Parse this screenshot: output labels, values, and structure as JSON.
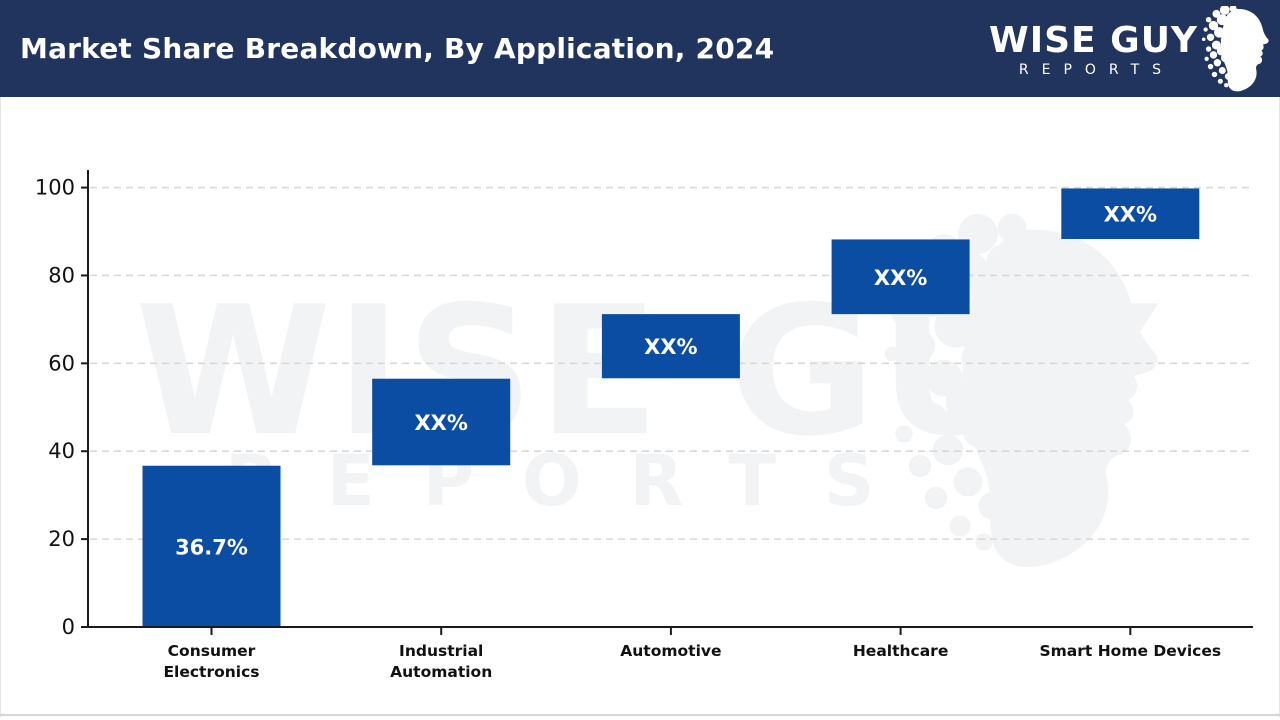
{
  "header": {
    "title": "Market Share Breakdown, By Application, 2024",
    "bg_color": "#20345e",
    "logo": {
      "line1": "WISE GUY",
      "line2": "REPORTS"
    }
  },
  "watermark": {
    "line1": "WISE GUY",
    "line2": "REPORTS"
  },
  "chart_data": {
    "type": "bar",
    "subtype": "waterfall",
    "title": "",
    "xlabel": "",
    "ylabel": "",
    "ylim": [
      0,
      104
    ],
    "yticks": [
      0,
      20,
      40,
      60,
      80,
      100
    ],
    "grid": "horizontal-dashed",
    "legend": "none",
    "bar_color": "#0b4da2",
    "bar_label_color": "#ffffff",
    "axis_color": "#1a1a1a",
    "grid_color": "#d8d8d8",
    "categories": [
      {
        "label": "Consumer Electronics",
        "lines": [
          "Consumer",
          "Electronics"
        ]
      },
      {
        "label": "Industrial Automation",
        "lines": [
          "Industrial",
          "Automation"
        ]
      },
      {
        "label": "Automotive",
        "lines": [
          "Automotive"
        ]
      },
      {
        "label": "Healthcare",
        "lines": [
          "Healthcare"
        ]
      },
      {
        "label": "Smart Home Devices",
        "lines": [
          "Smart Home Devices"
        ]
      }
    ],
    "segments": [
      {
        "category": "Consumer Electronics",
        "start": 0,
        "end": 36.7,
        "label": "36.7%"
      },
      {
        "category": "Industrial Automation",
        "start": 36.8,
        "end": 56.5,
        "label": "XX%"
      },
      {
        "category": "Automotive",
        "start": 56.6,
        "end": 71.2,
        "label": "XX%"
      },
      {
        "category": "Healthcare",
        "start": 71.2,
        "end": 88.2,
        "label": "XX%"
      },
      {
        "category": "Smart Home Devices",
        "start": 88.3,
        "end": 99.8,
        "label": "XX%"
      }
    ]
  }
}
